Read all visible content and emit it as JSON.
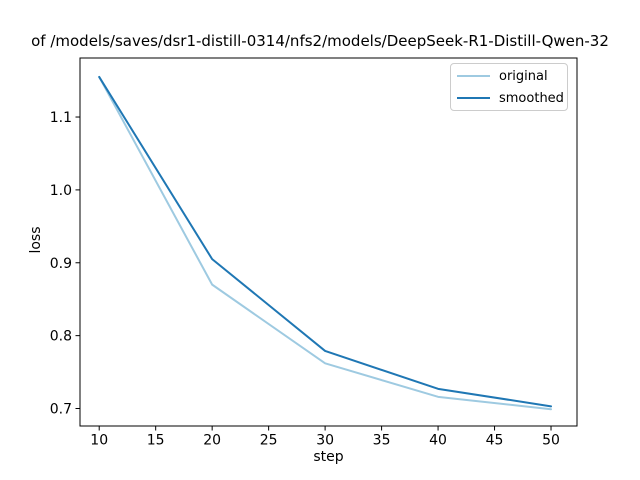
{
  "chart_data": {
    "type": "line",
    "title": "of /models/saves/dsr1-distill-0314/nfs2/models/DeepSeek-R1-Distill-Qwen-32",
    "xlabel": "step",
    "ylabel": "loss",
    "x": [
      10,
      20,
      30,
      40,
      50
    ],
    "series": [
      {
        "name": "original",
        "color": "#9ecae1",
        "values": [
          1.155,
          0.87,
          0.762,
          0.716,
          0.699
        ]
      },
      {
        "name": "smoothed",
        "color": "#1f77b4",
        "values": [
          1.155,
          0.905,
          0.779,
          0.727,
          0.703
        ]
      }
    ],
    "xlim": [
      8.3,
      52.3
    ],
    "ylim": [
      0.676,
      1.181
    ],
    "xticks": [
      10,
      15,
      20,
      25,
      30,
      35,
      40,
      45,
      50
    ],
    "yticks": [
      0.7,
      0.8,
      0.9,
      1.0,
      1.1
    ],
    "grid": false,
    "legend_position": "upper right",
    "axis_color": "#000000",
    "background_color": "#ffffff"
  }
}
